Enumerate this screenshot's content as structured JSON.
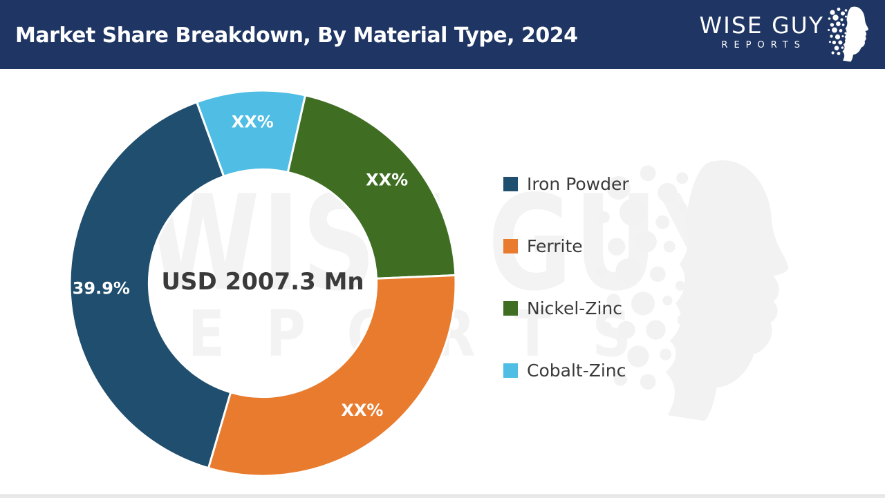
{
  "header": {
    "title": "Market Share Breakdown, By Material Type, 2024",
    "logo": {
      "line1": "WISE GUY",
      "line2": "REPORTS"
    }
  },
  "watermark": {
    "line1": "WISE GUY",
    "line2": "REPORTS"
  },
  "colors": {
    "header_bg": "#1f3664",
    "iron_powder": "#1f4e6e",
    "ferrite": "#e87b2e",
    "nickel_zinc": "#3f6e22",
    "cobalt_zinc": "#4fbde4",
    "segment_gap": "#ffffff",
    "center_text": "#3a3a3a",
    "legend_text": "#3a3a3a",
    "watermark_gray": "#f3f3f3"
  },
  "chart_data": {
    "type": "pie",
    "subtype": "donut",
    "title": "Market Share Breakdown, By Material Type, 2024",
    "center_label": "USD 2007.3 Mn",
    "start_angle_deg": -20,
    "clockwise": true,
    "inner_radius_ratio": 0.59,
    "label_radius_ratio": 0.838,
    "segments_draw_order": [
      {
        "name": "Cobalt-Zinc",
        "label": "XX%",
        "value_pct": 9.1,
        "color": "#4fbde4"
      },
      {
        "name": "Nickel-Zinc",
        "label": "XX%",
        "value_pct": 20.8,
        "color": "#3f6e22"
      },
      {
        "name": "Ferrite",
        "label": "XX%",
        "value_pct": 30.2,
        "color": "#e87b2e"
      },
      {
        "name": "Iron Powder",
        "label": "39.9%",
        "value_pct": 39.9,
        "color": "#1f4e6e"
      }
    ],
    "legend_position": "right",
    "legend": [
      {
        "label": "Iron Powder",
        "color": "#1f4e6e"
      },
      {
        "label": "Ferrite",
        "color": "#e87b2e"
      },
      {
        "label": "Nickel-Zinc",
        "color": "#3f6e22"
      },
      {
        "label": "Cobalt-Zinc",
        "color": "#4fbde4"
      }
    ]
  }
}
